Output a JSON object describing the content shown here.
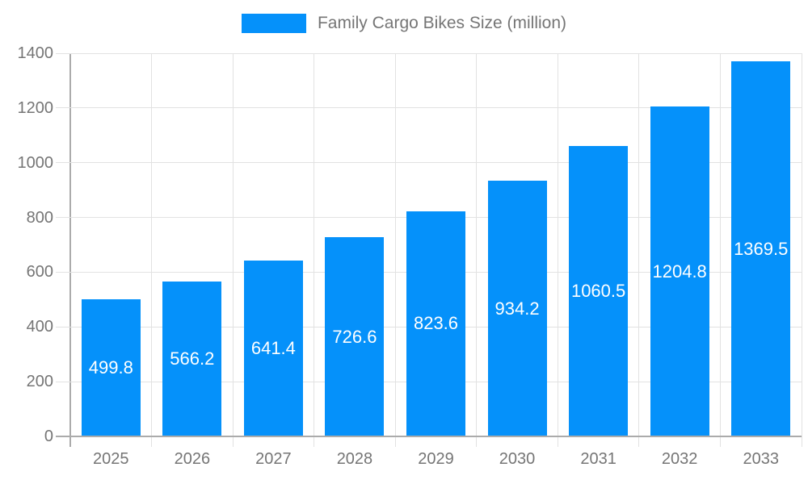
{
  "chart_data": {
    "type": "bar",
    "title": "Family Cargo Bikes Size (million)",
    "legend": {
      "position": "top",
      "entries": [
        "Family Cargo Bikes Size (million)"
      ]
    },
    "categories": [
      "2025",
      "2026",
      "2027",
      "2028",
      "2029",
      "2030",
      "2031",
      "2032",
      "2033"
    ],
    "series": [
      {
        "name": "Family Cargo Bikes Size (million)",
        "values": [
          499.8,
          566.2,
          641.4,
          726.6,
          823.6,
          934.2,
          1060.5,
          1204.8,
          1369.5
        ]
      }
    ],
    "value_labels": [
      "499.8",
      "566.2",
      "641.4",
      "726.6",
      "823.6",
      "934.2",
      "1060.5",
      "1204.8",
      "1369.5"
    ],
    "xlabel": "",
    "ylabel": "",
    "ylim": [
      0,
      1400
    ],
    "yticks": [
      0,
      200,
      400,
      600,
      800,
      1000,
      1200,
      1400
    ],
    "grid": true,
    "value_label_position": "inside-center",
    "colors": {
      "bar": "#0591fa",
      "value_label": "#ffffff",
      "axis_text": "#757575",
      "grid_line": "#e2e2e2",
      "axis_line": "#ababab",
      "background": "#ffffff"
    }
  }
}
